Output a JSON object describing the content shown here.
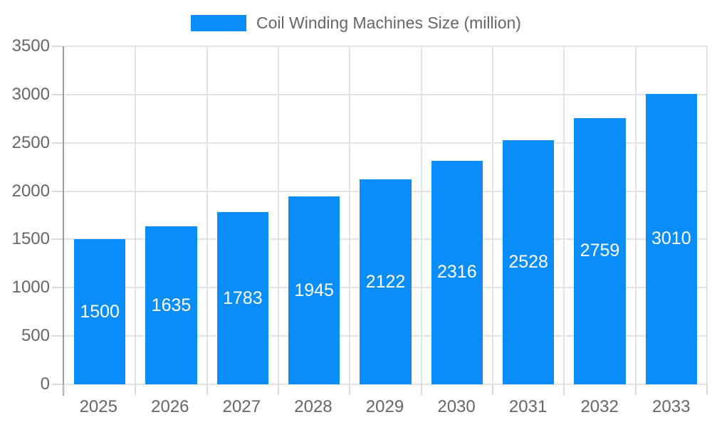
{
  "chart_data": {
    "type": "bar",
    "title": "Coil Winding Machines Size (million)",
    "categories": [
      "2025",
      "2026",
      "2027",
      "2028",
      "2029",
      "2030",
      "2031",
      "2032",
      "2033"
    ],
    "values": [
      1500,
      1635,
      1783,
      1945,
      2122,
      2316,
      2528,
      2759,
      3010
    ],
    "series": [
      {
        "name": "Coil Winding Machines Size (million)",
        "values": [
          1500,
          1635,
          1783,
          1945,
          2122,
          2316,
          2528,
          2759,
          3010
        ]
      }
    ],
    "xlabel": "",
    "ylabel": "",
    "ylim": [
      0,
      3500
    ],
    "ytick_step": 500,
    "ytick_labels": [
      "0",
      "500",
      "1000",
      "1500",
      "2000",
      "2500",
      "3000",
      "3500"
    ],
    "grid": true,
    "legend_position": "top",
    "value_labels_inside_bars": true,
    "colors": {
      "bar": "#0b8df8",
      "grid": "#e3e3e3",
      "axis_line": "#9a9a9a",
      "tick": "#d9d9d9",
      "text": "#666666",
      "value_label": "#ffffff",
      "background": "#ffffff"
    }
  }
}
